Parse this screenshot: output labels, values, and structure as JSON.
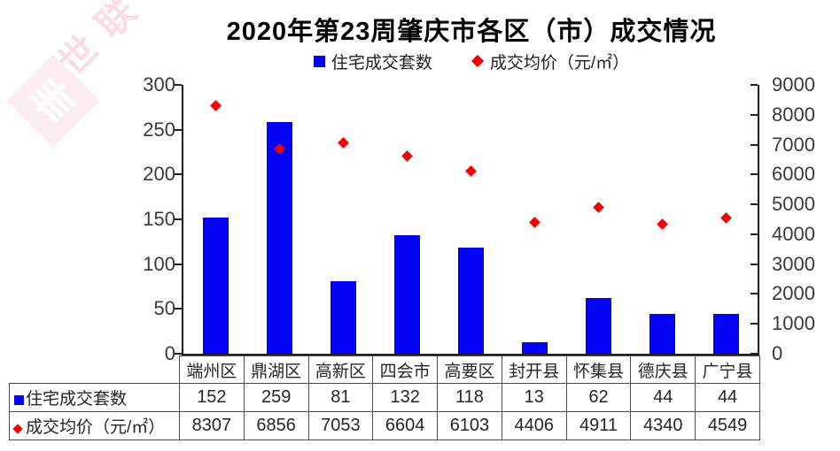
{
  "title": "2020年第23周肇庆市各区（市）成交情况",
  "watermark": {
    "logo_glyph": "卌",
    "diagonal_text": "世联行"
  },
  "legend": [
    {
      "label": "住宅成交套数",
      "marker": "square",
      "color": "#0404f4"
    },
    {
      "label": "成交均价（元/㎡）",
      "marker": "diamond",
      "color": "#f40000"
    }
  ],
  "colors": {
    "bar_blue": "#0404f4",
    "marker_red": "#f40000",
    "axis_line": "#1f1f1f",
    "watermark_pink": "#fcedef"
  },
  "chart_data": {
    "type": "bar",
    "title": "2020年第23周肇庆市各区（市）成交情况",
    "categories": [
      "端州区",
      "鼎湖区",
      "高新区",
      "四会市",
      "高要区",
      "封开县",
      "怀集县",
      "德庆县",
      "广宁县"
    ],
    "series": [
      {
        "name": "住宅成交套数",
        "type": "bar",
        "axis": "left",
        "color": "#0404f4",
        "values": [
          152,
          259,
          81,
          132,
          118,
          13,
          62,
          44,
          44
        ]
      },
      {
        "name": "成交均价（元/㎡）",
        "type": "scatter",
        "marker": "diamond",
        "axis": "right",
        "color": "#f40000",
        "values": [
          8307,
          6856,
          7053,
          6604,
          6103,
          4406,
          4911,
          4340,
          4549
        ]
      }
    ],
    "left_axis": {
      "min": 0,
      "max": 300,
      "ticks": [
        0,
        50,
        100,
        150,
        200,
        250,
        300
      ]
    },
    "right_axis": {
      "min": 0,
      "max": 9000,
      "ticks": [
        0,
        1000,
        2000,
        3000,
        4000,
        5000,
        6000,
        7000,
        8000,
        9000
      ]
    },
    "grid": false,
    "legend_position": "top"
  },
  "table": {
    "columns": [
      "端州区",
      "鼎湖区",
      "高新区",
      "四会市",
      "高要区",
      "封开县",
      "怀集县",
      "德庆县",
      "广宁县"
    ],
    "rows": [
      {
        "marker": "square",
        "label": "住宅成交套数",
        "values": [
          "152",
          "259",
          "81",
          "132",
          "118",
          "13",
          "62",
          "44",
          "44"
        ]
      },
      {
        "marker": "diamond",
        "label": "成交均价（元/㎡）",
        "values": [
          "8307",
          "6856",
          "7053",
          "6604",
          "6103",
          "4406",
          "4911",
          "4340",
          "4549"
        ]
      }
    ]
  }
}
